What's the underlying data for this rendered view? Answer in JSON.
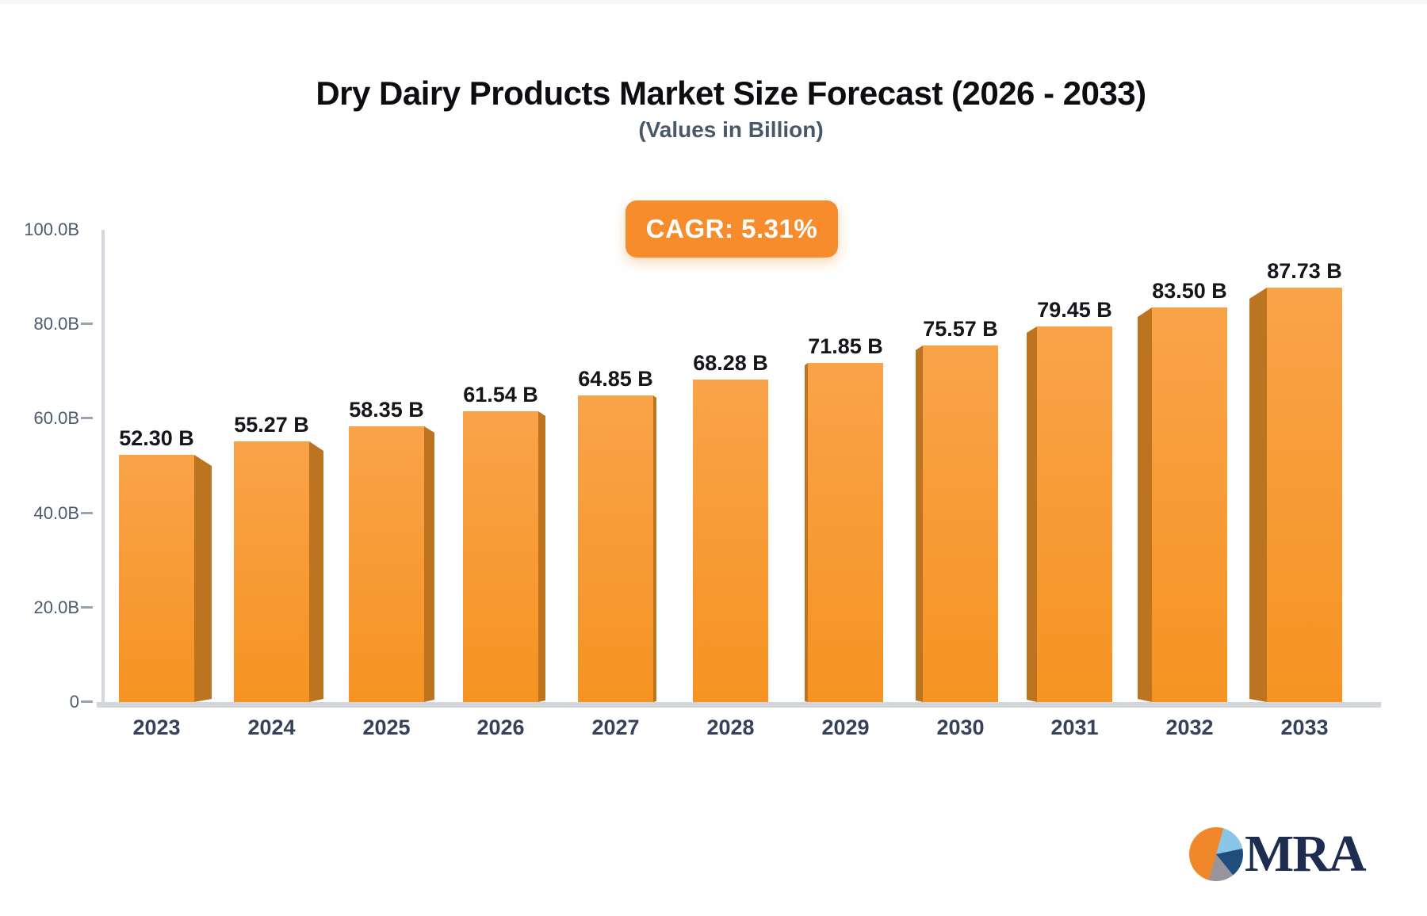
{
  "header": {
    "title": "Dry Dairy Products Market Size Forecast (2026 - 2033)",
    "subtitle": "(Values in Billion)",
    "badge_label": "CAGR: 5.31%"
  },
  "chart_data": {
    "type": "bar",
    "title": "Dry Dairy Products Market Size Forecast (2026 - 2033)",
    "subtitle": "(Values in Billion)",
    "cagr_label": "CAGR: 5.31%",
    "categories": [
      "2023",
      "2024",
      "2025",
      "2026",
      "2027",
      "2028",
      "2029",
      "2030",
      "2031",
      "2032",
      "2033"
    ],
    "values": [
      52.3,
      55.27,
      58.35,
      61.54,
      64.85,
      68.28,
      71.85,
      75.57,
      79.45,
      83.5,
      87.73
    ],
    "value_labels": [
      "52.30 B",
      "55.27 B",
      "58.35 B",
      "61.54 B",
      "64.85 B",
      "68.28 B",
      "71.85 B",
      "75.57 B",
      "79.45 B",
      "83.50 B",
      "87.73 B"
    ],
    "unit": "Billion",
    "xlabel": "",
    "ylabel": "",
    "ylim": [
      0,
      100
    ],
    "grid": false,
    "legend_position": "none",
    "y_ticks": [
      {
        "label": "100.0B",
        "value": 100,
        "dash": false
      },
      {
        "label": "80.0B",
        "value": 80,
        "dash": true
      },
      {
        "label": "60.0B",
        "value": 60,
        "dash": true
      },
      {
        "label": "40.0B",
        "value": 40,
        "dash": true
      },
      {
        "label": "20.0B",
        "value": 20,
        "dash": true
      },
      {
        "label": "0",
        "value": 0,
        "dash": true
      }
    ],
    "colors": {
      "bar_top": "#f9a349",
      "bar_bottom": "#f69322",
      "bar_side": "#bc7420",
      "badge": "#f68c2b",
      "axis": "#d6d8dd",
      "floor": "#d2d5da",
      "tick": "#9aa3ad",
      "tick_label": "#4b5a6e",
      "value_label": "#15161a",
      "year_label": "#36425a"
    }
  },
  "logo": {
    "text": "MRA",
    "icon": "pie-chart-icon",
    "colors": {
      "orange": "#f0872b",
      "light_blue": "#8ac6e8",
      "navy": "#1f4e7c",
      "gray": "#97949b",
      "text": "#1e2c50"
    }
  }
}
